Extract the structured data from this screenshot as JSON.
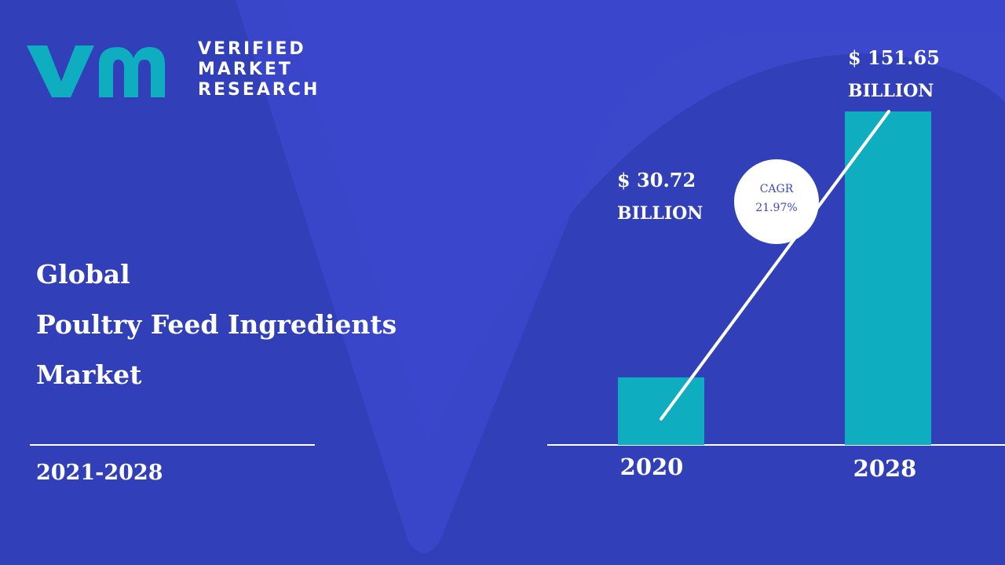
{
  "logo": {
    "lines": [
      "VERIFIED",
      "MARKET",
      "RESEARCH"
    ],
    "mark_text": "vmr",
    "colors": {
      "mark": "#0eaec0",
      "text": "#ffffff"
    }
  },
  "title": {
    "lines": [
      "Global",
      "Poultry Feed Ingredients",
      "Market"
    ]
  },
  "period": "2021-2028",
  "cagr": {
    "label": "CAGR",
    "value": "21.97%"
  },
  "colors": {
    "background": "#3b48cc",
    "background_shape": "#3140b8",
    "bar": "#0eaec0",
    "text": "#ffffff",
    "cagr_text": "#3b48cc"
  },
  "chart_data": {
    "type": "bar",
    "categories": [
      "2020",
      "2028"
    ],
    "values": [
      30.72,
      151.65
    ],
    "value_labels": [
      "$ 30.72",
      "$ 151.65"
    ],
    "unit_label": "BILLION",
    "trend_line": true,
    "grid": false
  }
}
